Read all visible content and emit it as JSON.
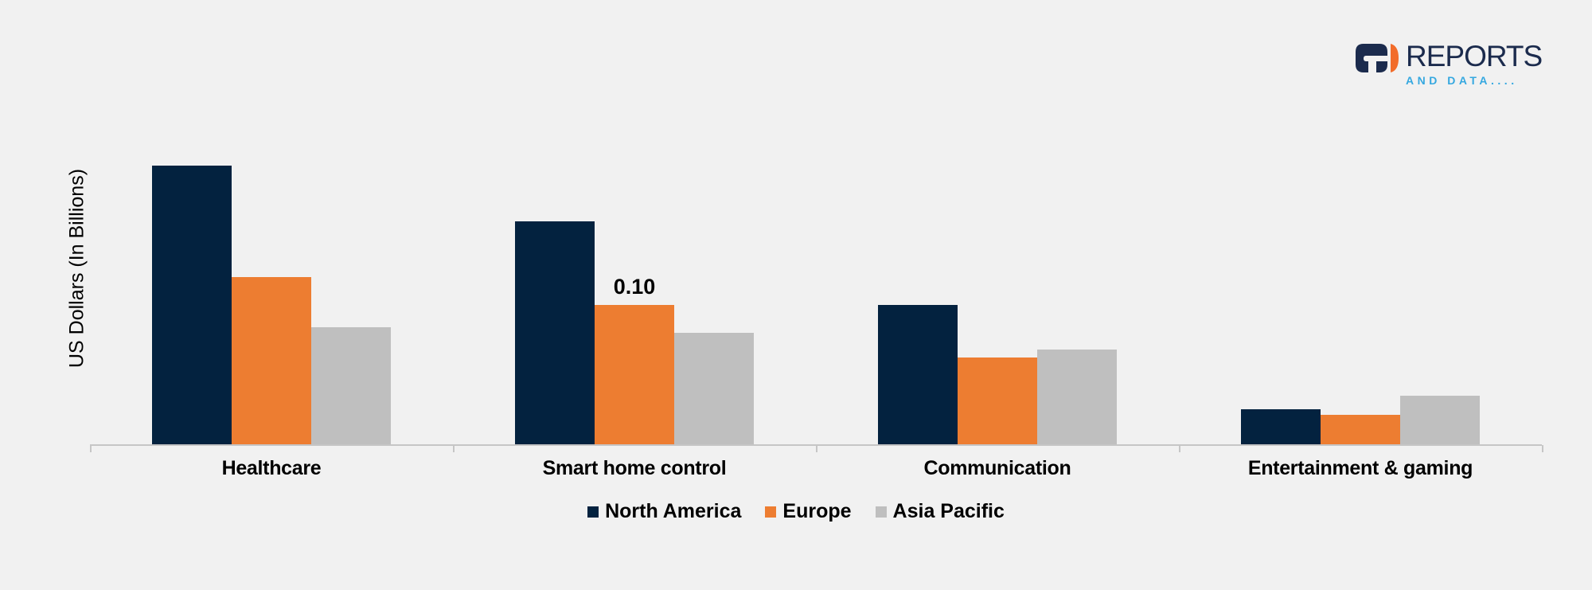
{
  "logo": {
    "name": "REPORTS",
    "tagline": "AND DATA....",
    "navy": "#1b2b4d",
    "orange": "#f26c2a",
    "light_blue": "#35a8e0"
  },
  "chart_data": {
    "type": "bar",
    "title": "",
    "xlabel": "",
    "ylabel": "US Dollars (In Billions)",
    "categories": [
      "Healthcare",
      "Smart home control",
      "Communication",
      "Entertainment & gaming"
    ],
    "series": [
      {
        "name": "North America",
        "color": "#03223f",
        "values": [
          0.2,
          0.16,
          0.1,
          0.025
        ]
      },
      {
        "name": "Europe",
        "color": "#ed7d31",
        "values": [
          0.12,
          0.1,
          0.062,
          0.021
        ]
      },
      {
        "name": "Asia Pacific",
        "color": "#bfbfbf",
        "values": [
          0.084,
          0.08,
          0.068,
          0.035
        ]
      }
    ],
    "data_labels": [
      {
        "series": "Europe",
        "category_index": 1,
        "text": "0.10"
      }
    ],
    "ylim": [
      0,
      0.232
    ],
    "grid": false,
    "legend_position": "bottom",
    "y_axis_ticks_visible": false
  },
  "colors": {
    "background": "#f1f1f1",
    "axis": "#c6c6c6",
    "text": "#000000"
  }
}
